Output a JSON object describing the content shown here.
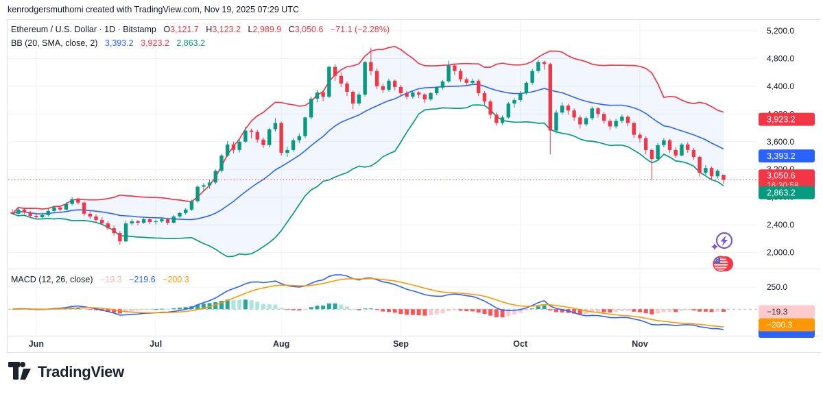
{
  "header": {
    "attribution": "kenrodgersmuthomi created with TradingView.com, Nov 19, 2025 07:29 UTC"
  },
  "legend": {
    "symbol_title": "Ethereum / U.S. Dollar · 1D · Bitstamp",
    "ohlc": {
      "o_label": "O",
      "o": "3,121.7",
      "h_label": "H",
      "h": "3,123.2",
      "l_label": "L",
      "l": "2,989.9",
      "c_label": "C",
      "c": "3,050.6",
      "change": "−71.1 (−2.28%)"
    },
    "bb": {
      "title": "BB (20, SMA, close, 2)",
      "basis": "3,393.2",
      "upper": "3,923.2",
      "lower": "2,863.2"
    }
  },
  "macd_legend": {
    "title": "MACD (12, 26, close)",
    "hist": "−19.3",
    "macd": "−219.6",
    "signal": "−200.3"
  },
  "footer": {
    "logo_text": "TradingView"
  },
  "colors": {
    "up": "#089981",
    "down": "#F23645",
    "bb_upper": "#F23645",
    "bb_basis": "#2962FF",
    "bb_lower": "#089981",
    "bb_fill": "rgba(41,98,255,0.06)",
    "macd_line": "#2962FF",
    "signal_line": "#FF9800",
    "hist_pos": "#26A69A",
    "hist_pos_weak": "#ACE5DC",
    "hist_neg_weak": "#FCCBCD",
    "hist_neg": "#FF5252",
    "grid": "#F0F2F5",
    "axis_text": "#131722",
    "divider": "#E0E3EB",
    "zero_dash": "#B2B5BE",
    "last_price_line": "#F23645"
  },
  "chart_data": {
    "type": "candlestick",
    "title": "Ethereum / U.S. Dollar",
    "interval": "1D",
    "exchange": "Bitstamp",
    "last": {
      "open": 3121.7,
      "high": 3123.2,
      "low": 2989.9,
      "close": 3050.6,
      "change": -71.1,
      "change_pct": -2.28
    },
    "overlays": {
      "bollinger": {
        "period": 20,
        "stddev": 2,
        "basis": 3393.2,
        "upper": 3923.2,
        "lower": 2863.2
      }
    },
    "indicator": {
      "macd": {
        "fast": 12,
        "slow": 26,
        "signal": 9,
        "hist_value": -19.3,
        "macd_value": -219.6,
        "signal_value": -200.3,
        "axis_tick": {
          "label": "250.0",
          "value": 250
        }
      }
    },
    "price_axis": {
      "ticks": [
        {
          "label": "5,200.0",
          "value": 5200
        },
        {
          "label": "4,800.0",
          "value": 4800
        },
        {
          "label": "4,400.0",
          "value": 4400
        },
        {
          "label": "4,000.0",
          "value": 4000
        },
        {
          "label": "3,600.0",
          "value": 3600
        },
        {
          "label": "3,200.0",
          "value": 3200
        },
        {
          "label": "2,800.0",
          "value": 2800
        },
        {
          "label": "2,400.0",
          "value": 2400
        },
        {
          "label": "2,000.0",
          "value": 2000
        }
      ],
      "badges": [
        {
          "id": "bb-upper-badge",
          "label": "3,923.2",
          "value": 3923.2,
          "bg": "#F23645",
          "fg": "#ffffff"
        },
        {
          "id": "bb-basis-badge",
          "label": "3,393.2",
          "value": 3393.2,
          "bg": "#2962FF",
          "fg": "#ffffff"
        },
        {
          "id": "last-price-badge",
          "label": "3,050.6",
          "countdown": "16:30:58",
          "value": 3050.6,
          "bg": "#F23645",
          "fg": "#ffffff"
        },
        {
          "id": "bb-lower-badge",
          "label": "2,863.2",
          "value": 2863.2,
          "bg": "#089981",
          "fg": "#ffffff"
        }
      ]
    },
    "x_ticks": [
      {
        "label": "Jun",
        "index": 4
      },
      {
        "label": "Jul",
        "index": 24
      },
      {
        "label": "Aug",
        "index": 45
      },
      {
        "label": "Sep",
        "index": 65
      },
      {
        "label": "Oct",
        "index": 85
      },
      {
        "label": "Nov",
        "index": 105
      }
    ],
    "last_price_line": 3050.6,
    "candles": [
      [
        2580,
        2625,
        2545,
        2560
      ],
      [
        2560,
        2640,
        2550,
        2620
      ],
      [
        2620,
        2650,
        2555,
        2580
      ],
      [
        2580,
        2600,
        2505,
        2530
      ],
      [
        2530,
        2560,
        2480,
        2510
      ],
      [
        2510,
        2575,
        2495,
        2540
      ],
      [
        2540,
        2630,
        2520,
        2600
      ],
      [
        2600,
        2680,
        2575,
        2650
      ],
      [
        2650,
        2675,
        2590,
        2620
      ],
      [
        2620,
        2730,
        2605,
        2700
      ],
      [
        2700,
        2800,
        2680,
        2770
      ],
      [
        2770,
        2790,
        2690,
        2720
      ],
      [
        2720,
        2740,
        2530,
        2560
      ],
      [
        2560,
        2595,
        2480,
        2520
      ],
      [
        2520,
        2555,
        2435,
        2470
      ],
      [
        2470,
        2510,
        2395,
        2420
      ],
      [
        2420,
        2450,
        2320,
        2350
      ],
      [
        2350,
        2390,
        2240,
        2280
      ],
      [
        2280,
        2310,
        2111,
        2160
      ],
      [
        2160,
        2450,
        2150,
        2420
      ],
      [
        2420,
        2480,
        2390,
        2450
      ],
      [
        2450,
        2470,
        2395,
        2430
      ],
      [
        2430,
        2510,
        2415,
        2480
      ],
      [
        2480,
        2500,
        2410,
        2440
      ],
      [
        2440,
        2475,
        2405,
        2450
      ],
      [
        2450,
        2510,
        2430,
        2480
      ],
      [
        2480,
        2500,
        2400,
        2430
      ],
      [
        2430,
        2540,
        2415,
        2520
      ],
      [
        2520,
        2590,
        2500,
        2570
      ],
      [
        2570,
        2640,
        2545,
        2620
      ],
      [
        2620,
        2760,
        2600,
        2740
      ],
      [
        2740,
        2970,
        2720,
        2950
      ],
      [
        2950,
        3000,
        2880,
        2970
      ],
      [
        2970,
        3045,
        2920,
        3010
      ],
      [
        3010,
        3200,
        2985,
        3180
      ],
      [
        3180,
        3420,
        3150,
        3400
      ],
      [
        3400,
        3610,
        3380,
        3560
      ],
      [
        3560,
        3600,
        3430,
        3480
      ],
      [
        3480,
        3640,
        3445,
        3600
      ],
      [
        3600,
        3815,
        3580,
        3760
      ],
      [
        3760,
        3790,
        3650,
        3740
      ],
      [
        3740,
        3770,
        3585,
        3630
      ],
      [
        3630,
        3660,
        3510,
        3550
      ],
      [
        3550,
        3800,
        3520,
        3780
      ],
      [
        3780,
        3940,
        3745,
        3870
      ],
      [
        3870,
        3890,
        3400,
        3440
      ],
      [
        3440,
        3530,
        3380,
        3480
      ],
      [
        3480,
        3650,
        3455,
        3620
      ],
      [
        3620,
        3720,
        3580,
        3680
      ],
      [
        3680,
        3960,
        3650,
        3950
      ],
      [
        3950,
        4250,
        3920,
        4220
      ],
      [
        4220,
        4350,
        4170,
        4310
      ],
      [
        4310,
        4340,
        4180,
        4250
      ],
      [
        4250,
        4700,
        4230,
        4680
      ],
      [
        4680,
        4720,
        4480,
        4550
      ],
      [
        4550,
        4600,
        4390,
        4440
      ],
      [
        4440,
        4470,
        4260,
        4320
      ],
      [
        4320,
        4340,
        4070,
        4150
      ],
      [
        4150,
        4310,
        4120,
        4280
      ],
      [
        4280,
        4760,
        4250,
        4750
      ],
      [
        4750,
        4956,
        4560,
        4620
      ],
      [
        4620,
        4660,
        4360,
        4400
      ],
      [
        4400,
        4440,
        4300,
        4350
      ],
      [
        4350,
        4510,
        4320,
        4480
      ],
      [
        4480,
        4500,
        4340,
        4390
      ],
      [
        4390,
        4420,
        4270,
        4300
      ],
      [
        4300,
        4330,
        4210,
        4250
      ],
      [
        4250,
        4340,
        4220,
        4310
      ],
      [
        4310,
        4330,
        4230,
        4280
      ],
      [
        4280,
        4300,
        4160,
        4210
      ],
      [
        4210,
        4320,
        4190,
        4300
      ],
      [
        4300,
        4400,
        4270,
        4380
      ],
      [
        4380,
        4490,
        4350,
        4470
      ],
      [
        4470,
        4770,
        4450,
        4700
      ],
      [
        4700,
        4730,
        4560,
        4620
      ],
      [
        4620,
        4650,
        4460,
        4500
      ],
      [
        4500,
        4530,
        4410,
        4450
      ],
      [
        4450,
        4510,
        4420,
        4480
      ],
      [
        4480,
        4500,
        4260,
        4300
      ],
      [
        4300,
        4330,
        4130,
        4180
      ],
      [
        4180,
        4210,
        3930,
        3990
      ],
      [
        3990,
        4020,
        3830,
        3870
      ],
      [
        3870,
        3980,
        3840,
        3950
      ],
      [
        3950,
        4170,
        3930,
        4150
      ],
      [
        4150,
        4230,
        4090,
        4200
      ],
      [
        4200,
        4330,
        4170,
        4300
      ],
      [
        4300,
        4470,
        4280,
        4450
      ],
      [
        4450,
        4650,
        4420,
        4620
      ],
      [
        4620,
        4780,
        4590,
        4750
      ],
      [
        4750,
        4770,
        4640,
        4720
      ],
      [
        4720,
        4740,
        3420,
        3760
      ],
      [
        3760,
        4060,
        3720,
        4020
      ],
      [
        4020,
        4170,
        3990,
        4120
      ],
      [
        4120,
        4150,
        3990,
        4050
      ],
      [
        4050,
        4080,
        3900,
        3950
      ],
      [
        3950,
        3980,
        3790,
        3850
      ],
      [
        3850,
        3970,
        3820,
        3940
      ],
      [
        3940,
        4110,
        3910,
        4080
      ],
      [
        4080,
        4100,
        3950,
        4000
      ],
      [
        4000,
        4030,
        3860,
        3900
      ],
      [
        3900,
        3930,
        3770,
        3820
      ],
      [
        3820,
        3930,
        3790,
        3900
      ],
      [
        3900,
        3990,
        3870,
        3960
      ],
      [
        3960,
        3980,
        3820,
        3870
      ],
      [
        3870,
        3890,
        3650,
        3700
      ],
      [
        3700,
        3730,
        3590,
        3650
      ],
      [
        3650,
        3680,
        3420,
        3480
      ],
      [
        3480,
        3500,
        3050,
        3350
      ],
      [
        3350,
        3580,
        3330,
        3550
      ],
      [
        3550,
        3650,
        3520,
        3620
      ],
      [
        3620,
        3640,
        3440,
        3480
      ],
      [
        3480,
        3520,
        3360,
        3400
      ],
      [
        3400,
        3580,
        3390,
        3560
      ],
      [
        3560,
        3590,
        3440,
        3480
      ],
      [
        3480,
        3510,
        3340,
        3380
      ],
      [
        3380,
        3400,
        3090,
        3150
      ],
      [
        3150,
        3260,
        3120,
        3220
      ],
      [
        3220,
        3240,
        3040,
        3100
      ],
      [
        3100,
        3200,
        3070,
        3180
      ],
      [
        3121.7,
        3123.2,
        2989.9,
        3050.6
      ]
    ]
  }
}
